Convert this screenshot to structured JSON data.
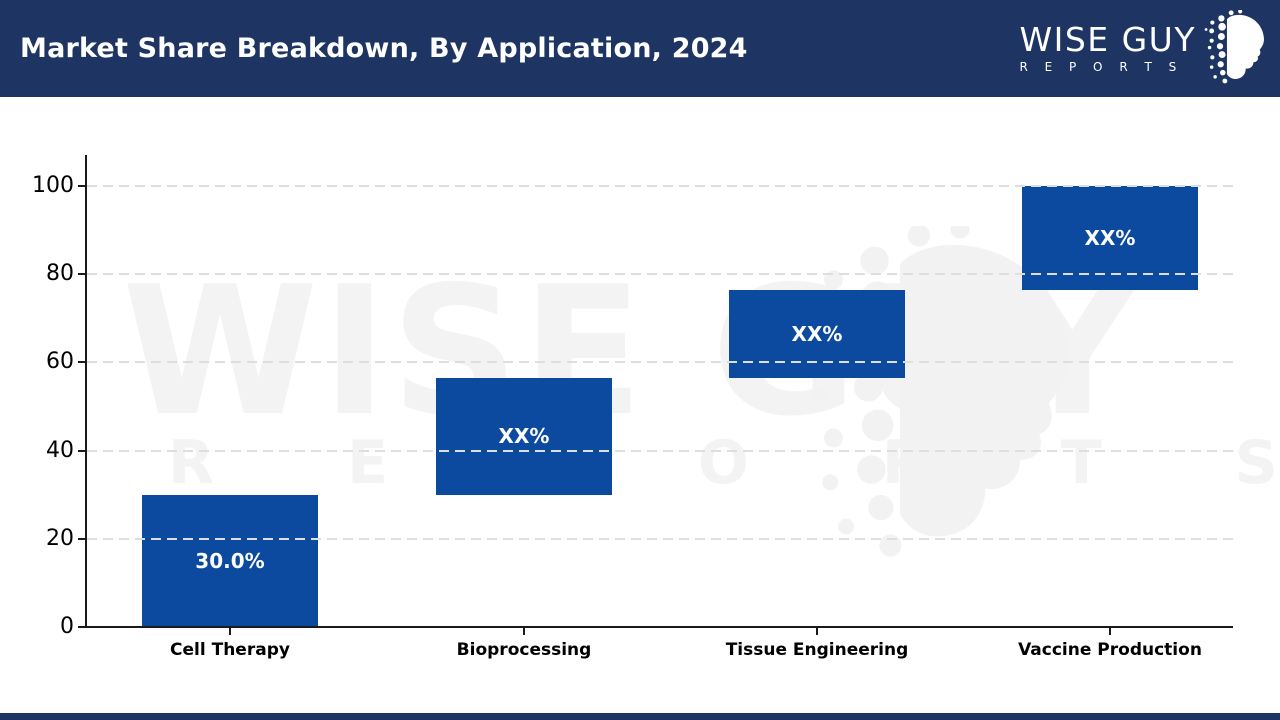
{
  "header": {
    "title": "Market Share Breakdown, By Application, 2024",
    "bg_color": "#1e3563",
    "logo": {
      "name": "WISE GUY",
      "sub": "R E P O R T S"
    }
  },
  "watermark": {
    "line1": "WISE GUY",
    "line2": "R E P O R T S"
  },
  "chart_data": {
    "type": "bar",
    "subtype": "waterfall",
    "title": "Market Share Breakdown, By Application, 2024",
    "categories": [
      "Cell Therapy",
      "Bioprocessing",
      "Tissue Engineering",
      "Vaccine Production"
    ],
    "segments": [
      {
        "category": "Cell Therapy",
        "start": 0,
        "end": 30,
        "label": "30.0%"
      },
      {
        "category": "Bioprocessing",
        "start": 30,
        "end": 56.5,
        "label": "XX%"
      },
      {
        "category": "Tissue Engineering",
        "start": 56.5,
        "end": 76.5,
        "label": "XX%"
      },
      {
        "category": "Vaccine Production",
        "start": 76.5,
        "end": 100,
        "label": "XX%"
      }
    ],
    "ylim": [
      0,
      100
    ],
    "yticks": [
      0,
      20,
      40,
      60,
      80,
      100
    ],
    "xlabel": "",
    "ylabel": "",
    "grid": "horizontal dashed, drawn over bars",
    "legend_position": "none",
    "bar_color": "#0b4a9e",
    "bar_label_color": "#ffffff"
  }
}
